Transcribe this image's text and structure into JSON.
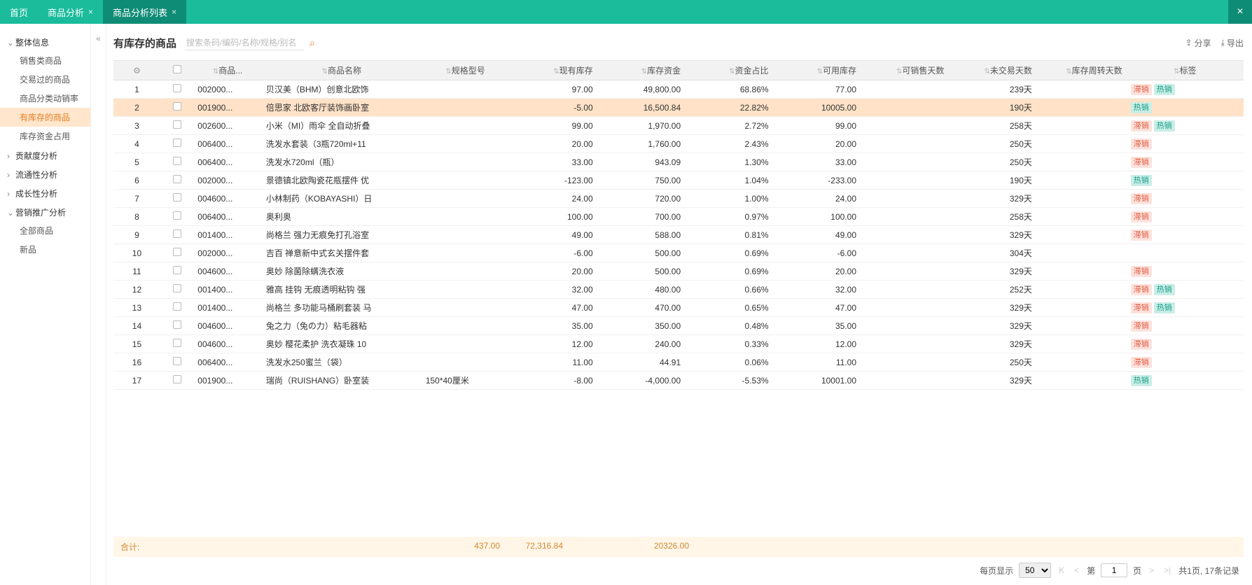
{
  "tabs": [
    {
      "label": "首页",
      "closable": false,
      "active": false
    },
    {
      "label": "商品分析",
      "closable": true,
      "active": false
    },
    {
      "label": "商品分析列表",
      "closable": true,
      "active": true
    }
  ],
  "sidebar": {
    "groups": [
      {
        "label": "整体信息",
        "expanded": true,
        "items": [
          {
            "label": "销售类商品"
          },
          {
            "label": "交易过的商品"
          },
          {
            "label": "商品分类动销率"
          },
          {
            "label": "有库存的商品",
            "active": true
          },
          {
            "label": "库存资金占用"
          }
        ]
      },
      {
        "label": "贡献度分析",
        "expanded": false,
        "items": []
      },
      {
        "label": "流通性分析",
        "expanded": false,
        "items": []
      },
      {
        "label": "成长性分析",
        "expanded": false,
        "items": []
      },
      {
        "label": "营销推广分析",
        "expanded": true,
        "items": [
          {
            "label": "全部商品"
          },
          {
            "label": "新品"
          }
        ]
      }
    ]
  },
  "page": {
    "title": "有库存的商品",
    "search_placeholder": "搜索条码/编码/名称/规格/别名",
    "share": "分享",
    "export": "导出"
  },
  "columns": [
    "",
    "",
    "商品...",
    "商品名称",
    "规格型号",
    "现有库存",
    "库存资金",
    "资金占比",
    "可用库存",
    "可销售天数",
    "未交易天数",
    "库存周转天数",
    "标签"
  ],
  "rows": [
    {
      "idx": 1,
      "code": "002000...",
      "name": "贝汉美（BHM）创意北欧饰",
      "spec": "",
      "stock": "97.00",
      "fund": "49,800.00",
      "pct": "68.86%",
      "avail": "77.00",
      "sale": "",
      "notx": "239天",
      "turn": "",
      "tags": [
        "滞销",
        "热销"
      ]
    },
    {
      "idx": 2,
      "code": "001900...",
      "name": "倍思家 北欧客厅装饰画卧室",
      "spec": "",
      "stock": "-5.00",
      "fund": "16,500.84",
      "pct": "22.82%",
      "avail": "10005.00",
      "sale": "",
      "notx": "190天",
      "turn": "",
      "tags": [
        "热销"
      ],
      "hl": true
    },
    {
      "idx": 3,
      "code": "002600...",
      "name": "小米（MI）雨伞 全自动折叠",
      "spec": "",
      "stock": "99.00",
      "fund": "1,970.00",
      "pct": "2.72%",
      "avail": "99.00",
      "sale": "",
      "notx": "258天",
      "turn": "",
      "tags": [
        "滞销",
        "热销"
      ]
    },
    {
      "idx": 4,
      "code": "006400...",
      "name": "洗发水套装（3瓶720ml+11",
      "spec": "",
      "stock": "20.00",
      "fund": "1,760.00",
      "pct": "2.43%",
      "avail": "20.00",
      "sale": "",
      "notx": "250天",
      "turn": "",
      "tags": [
        "滞销"
      ]
    },
    {
      "idx": 5,
      "code": "006400...",
      "name": "洗发水720ml（瓶）",
      "spec": "",
      "stock": "33.00",
      "fund": "943.09",
      "pct": "1.30%",
      "avail": "33.00",
      "sale": "",
      "notx": "250天",
      "turn": "",
      "tags": [
        "滞销"
      ]
    },
    {
      "idx": 6,
      "code": "002000...",
      "name": "景德镇北欧陶瓷花瓶摆件 优",
      "spec": "",
      "stock": "-123.00",
      "fund": "750.00",
      "pct": "1.04%",
      "avail": "-233.00",
      "sale": "",
      "notx": "190天",
      "turn": "",
      "tags": [
        "热销"
      ]
    },
    {
      "idx": 7,
      "code": "004600...",
      "name": "小林制药（KOBAYASHI）日",
      "spec": "",
      "stock": "24.00",
      "fund": "720.00",
      "pct": "1.00%",
      "avail": "24.00",
      "sale": "",
      "notx": "329天",
      "turn": "",
      "tags": [
        "滞销"
      ]
    },
    {
      "idx": 8,
      "code": "006400...",
      "name": "奥利奥",
      "spec": "",
      "stock": "100.00",
      "fund": "700.00",
      "pct": "0.97%",
      "avail": "100.00",
      "sale": "",
      "notx": "258天",
      "turn": "",
      "tags": [
        "滞销"
      ]
    },
    {
      "idx": 9,
      "code": "001400...",
      "name": "尚格兰 强力无痕免打孔浴室",
      "spec": "",
      "stock": "49.00",
      "fund": "588.00",
      "pct": "0.81%",
      "avail": "49.00",
      "sale": "",
      "notx": "329天",
      "turn": "",
      "tags": [
        "滞销"
      ]
    },
    {
      "idx": 10,
      "code": "002000...",
      "name": "吉百 禅意新中式玄关摆件套",
      "spec": "",
      "stock": "-6.00",
      "fund": "500.00",
      "pct": "0.69%",
      "avail": "-6.00",
      "sale": "",
      "notx": "304天",
      "turn": "",
      "tags": []
    },
    {
      "idx": 11,
      "code": "004600...",
      "name": "奥妙 除菌除螨洗衣液",
      "spec": "",
      "stock": "20.00",
      "fund": "500.00",
      "pct": "0.69%",
      "avail": "20.00",
      "sale": "",
      "notx": "329天",
      "turn": "",
      "tags": [
        "滞销"
      ]
    },
    {
      "idx": 12,
      "code": "001400...",
      "name": "雅高 挂钩 无痕透明粘钩 强",
      "spec": "",
      "stock": "32.00",
      "fund": "480.00",
      "pct": "0.66%",
      "avail": "32.00",
      "sale": "",
      "notx": "252天",
      "turn": "",
      "tags": [
        "滞销",
        "热销"
      ]
    },
    {
      "idx": 13,
      "code": "001400...",
      "name": "尚格兰 多功能马桶刷套装 马",
      "spec": "",
      "stock": "47.00",
      "fund": "470.00",
      "pct": "0.65%",
      "avail": "47.00",
      "sale": "",
      "notx": "329天",
      "turn": "",
      "tags": [
        "滞销",
        "热销"
      ]
    },
    {
      "idx": 14,
      "code": "004600...",
      "name": "兔之力（兔の力）粘毛器粘",
      "spec": "",
      "stock": "35.00",
      "fund": "350.00",
      "pct": "0.48%",
      "avail": "35.00",
      "sale": "",
      "notx": "329天",
      "turn": "",
      "tags": [
        "滞销"
      ]
    },
    {
      "idx": 15,
      "code": "004600...",
      "name": "奥妙 樱花柔护 洗衣凝珠 10",
      "spec": "",
      "stock": "12.00",
      "fund": "240.00",
      "pct": "0.33%",
      "avail": "12.00",
      "sale": "",
      "notx": "329天",
      "turn": "",
      "tags": [
        "滞销"
      ]
    },
    {
      "idx": 16,
      "code": "006400...",
      "name": "洗发水250蜜兰（袋）",
      "spec": "",
      "stock": "11.00",
      "fund": "44.91",
      "pct": "0.06%",
      "avail": "11.00",
      "sale": "",
      "notx": "250天",
      "turn": "",
      "tags": [
        "滞销"
      ]
    },
    {
      "idx": 17,
      "code": "001900...",
      "name": "瑞尚（RUISHANG）卧室装",
      "spec": "150*40厘米",
      "stock": "-8.00",
      "fund": "-4,000.00",
      "pct": "-5.53%",
      "avail": "10001.00",
      "sale": "",
      "notx": "329天",
      "turn": "",
      "tags": [
        "热销"
      ]
    }
  ],
  "totals": {
    "label": "合计:",
    "stock": "437.00",
    "fund": "72,316.84",
    "avail": "20326.00"
  },
  "pager": {
    "per_label": "每页显示",
    "per": "50",
    "page_label_pre": "第",
    "page": "1",
    "page_label_post": "页",
    "summary": "共1页, 17条记录"
  }
}
